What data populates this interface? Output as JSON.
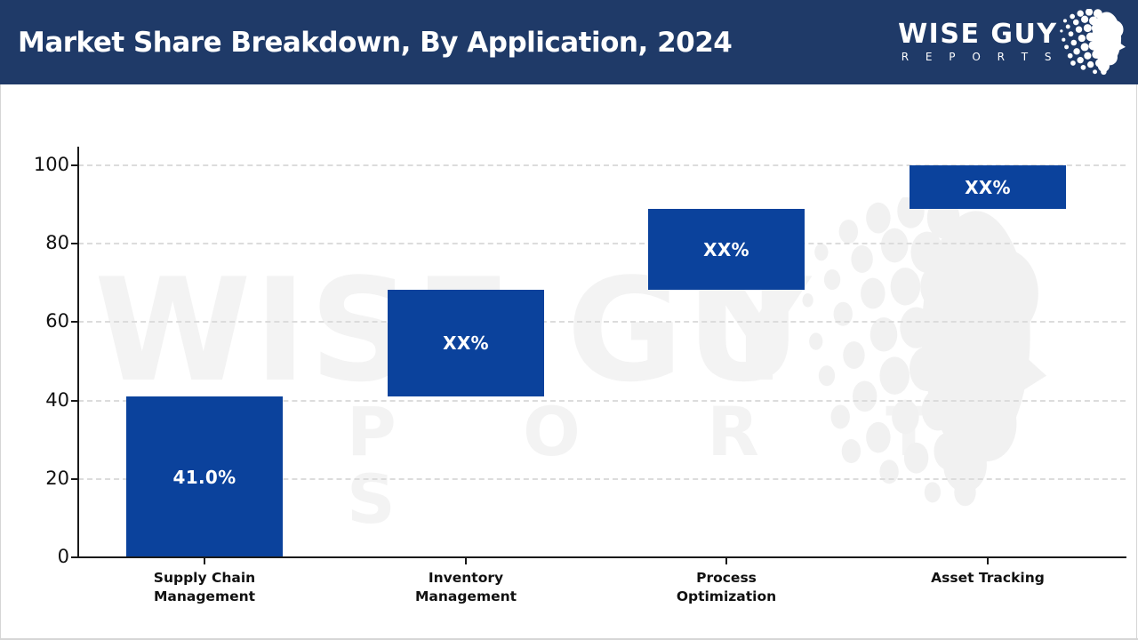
{
  "header": {
    "title": "Market Share Breakdown, By Application, 2024",
    "bg_color": "#1f3a68",
    "logo": {
      "wordmark": "WISE GUY",
      "subtext": "R E P O R T S"
    }
  },
  "watermark": {
    "word1": "WISE GU",
    "word2": "Y",
    "word3": "P O R T S",
    "color": "#f3f3f3"
  },
  "chart_data": {
    "type": "bar",
    "subtype": "waterfall",
    "title": "Market Share Breakdown, By Application, 2024",
    "categories": [
      {
        "label": "Supply Chain Management",
        "lines": [
          "Supply Chain",
          "Management"
        ]
      },
      {
        "label": "Inventory Management",
        "lines": [
          "Inventory",
          "Management"
        ]
      },
      {
        "label": "Process Optimization",
        "lines": [
          "Process",
          "Optimization"
        ]
      },
      {
        "label": "Asset Tracking",
        "lines": [
          "Asset Tracking"
        ]
      }
    ],
    "series": [
      {
        "name": "Market share (%)",
        "segments": [
          {
            "category": "Supply Chain Management",
            "start": 0,
            "end": 41,
            "value": 41.0,
            "label": "41.0%"
          },
          {
            "category": "Inventory Management",
            "start": 41,
            "end": 68.3,
            "value": 27.3,
            "label": "XX%"
          },
          {
            "category": "Process Optimization",
            "start": 68.3,
            "end": 88.8,
            "value": 20.5,
            "label": "XX%"
          },
          {
            "category": "Asset Tracking",
            "start": 88.8,
            "end": 100,
            "value": 11.2,
            "label": "XX%"
          }
        ]
      }
    ],
    "ylim": [
      0,
      105
    ],
    "yticks": [
      0,
      20,
      40,
      60,
      80,
      100
    ],
    "grid": "horizontal-dashed",
    "legend": "none",
    "bar_color": "#0b429c",
    "bar_label_color": "#ffffff",
    "gridline_color": "#dcdcdc",
    "axis_color": "#1a1a1a"
  }
}
